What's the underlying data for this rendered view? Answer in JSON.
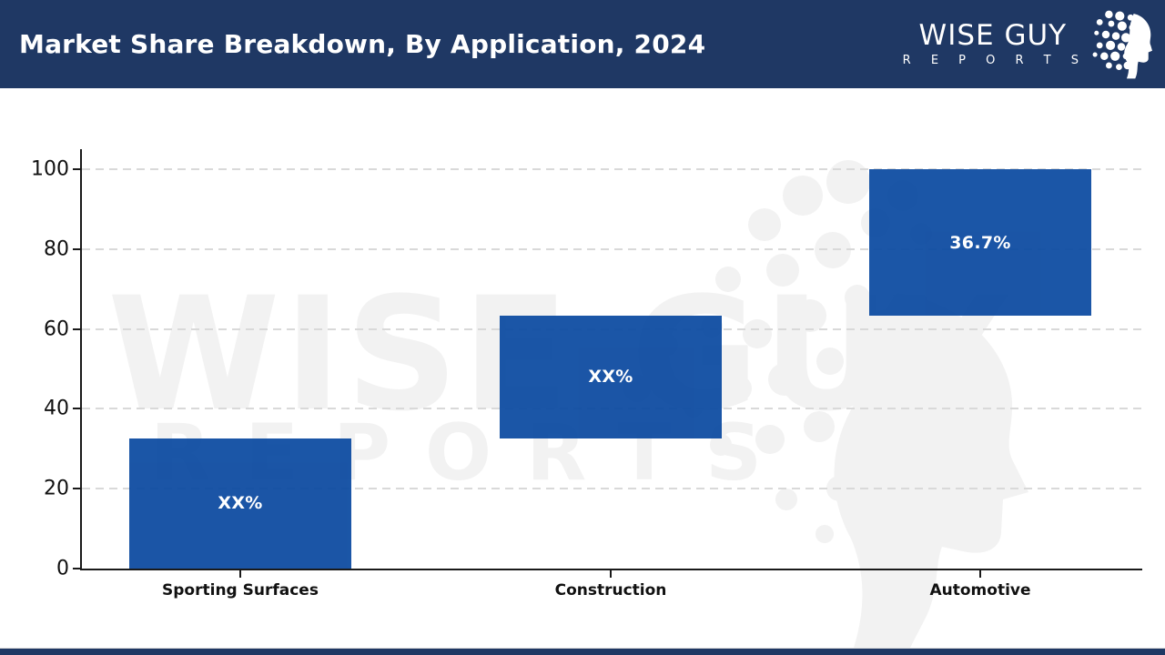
{
  "colors": {
    "header_navy": "#1f3864",
    "bar_blue": "#0a49a0",
    "grid_gray": "#d9d9d9",
    "axis_black": "#1a1a1a",
    "watermark_gray": "#f2f2f2",
    "bar_label_white": "#ffffff"
  },
  "header": {
    "title": "Market Share Breakdown, By Application, 2024",
    "logo": {
      "name": "WISE GUY",
      "sub": "R E P O R T S"
    }
  },
  "watermark": {
    "name": "WISE GUY",
    "sub": "R E P O R T S"
  },
  "chart_data": {
    "type": "bar",
    "variant": "stacked-waterfall-segments",
    "title": "Market Share Breakdown, By Application, 2024",
    "categories": [
      "Sporting Surfaces",
      "Construction",
      "Automotive"
    ],
    "series": [
      {
        "name": "Sporting Surfaces",
        "start": 0,
        "end": 32.6,
        "value_label": "XX%"
      },
      {
        "name": "Construction",
        "start": 32.6,
        "end": 63.3,
        "value_label": "XX%"
      },
      {
        "name": "Automotive",
        "start": 63.3,
        "end": 100,
        "value_label": "36.7%"
      }
    ],
    "yticks": [
      0,
      20,
      40,
      60,
      80,
      100
    ],
    "ylim": [
      0,
      105
    ],
    "xlabel": "",
    "ylabel": "",
    "grid": "horizontal-dashed",
    "legend": "none",
    "bar_color": "#0a49a0",
    "bar_label_color": "#ffffff"
  }
}
